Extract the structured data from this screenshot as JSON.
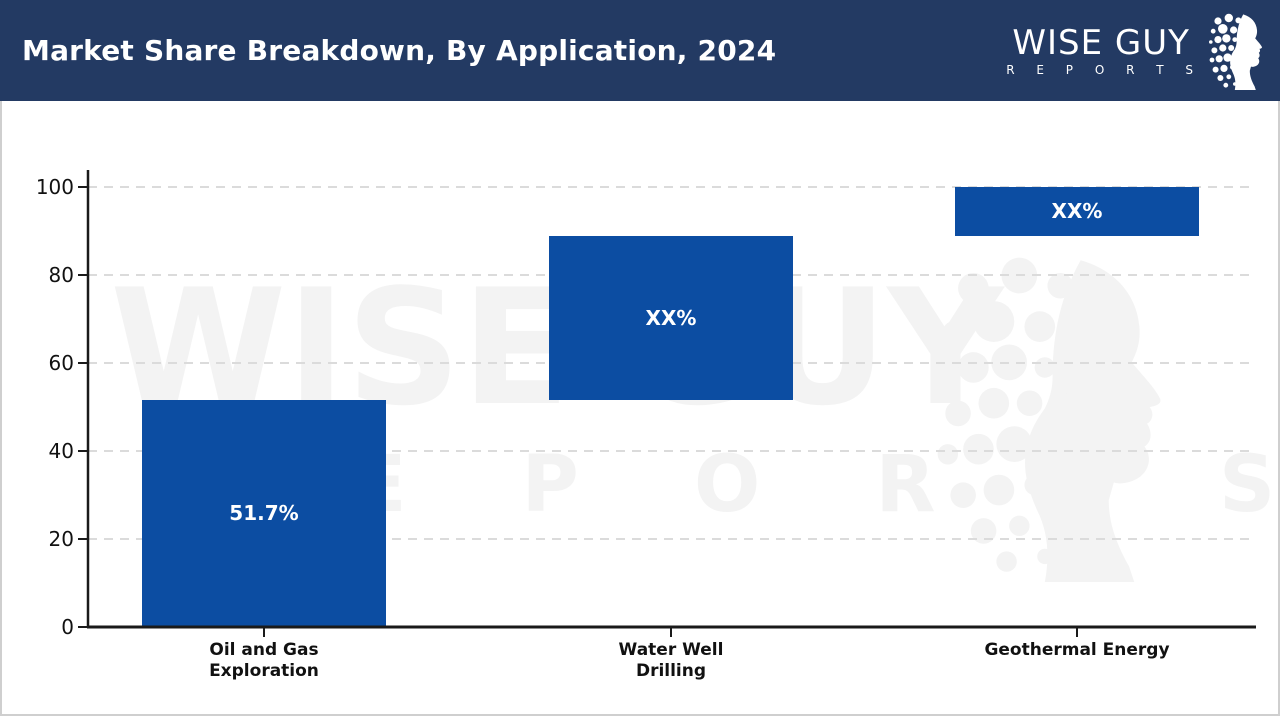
{
  "header": {
    "title": "Market Share Breakdown, By Application, 2024",
    "logo": {
      "brand_line1": "WISE GUY",
      "brand_line2": "R E P O R T S"
    }
  },
  "watermark": {
    "line1": "WISE GUY",
    "line2": "R E P O R T S"
  },
  "chart_data": {
    "type": "bar",
    "subtype": "waterfall",
    "title": "Market Share Breakdown, By Application, 2024",
    "unit": "percent",
    "categories": [
      [
        "Oil and Gas",
        "Exploration"
      ],
      [
        "Water Well",
        "Drilling"
      ],
      [
        "Geothermal Energy"
      ]
    ],
    "bars": [
      {
        "category": "Oil and Gas Exploration",
        "start": 0,
        "end": 51.7,
        "value": 51.7,
        "label": "51.7%"
      },
      {
        "category": "Water Well Drilling",
        "start": 51.7,
        "end": 88.9,
        "value": 37.2,
        "label": "XX%"
      },
      {
        "category": "Geothermal Energy",
        "start": 88.9,
        "end": 100,
        "value": 11.1,
        "label": "XX%"
      }
    ],
    "yticks": [
      0,
      20,
      40,
      60,
      80,
      100
    ],
    "ylim": [
      0,
      100
    ],
    "xlabel": "",
    "ylabel": "",
    "legend": "none",
    "grid": "horizontal-dashed",
    "bar_color": "#0C4DA2",
    "bar_label_color": "#FFFFFF"
  },
  "colors": {
    "header_bg": "#233A63",
    "header_text": "#FFFFFF",
    "bar": "#0C4DA2",
    "grid": "#DBDBDB",
    "axis": "#1A1A1A",
    "tick_text": "#111111",
    "watermark": "#F3F3F3",
    "page_border": "#CFCFCF"
  }
}
